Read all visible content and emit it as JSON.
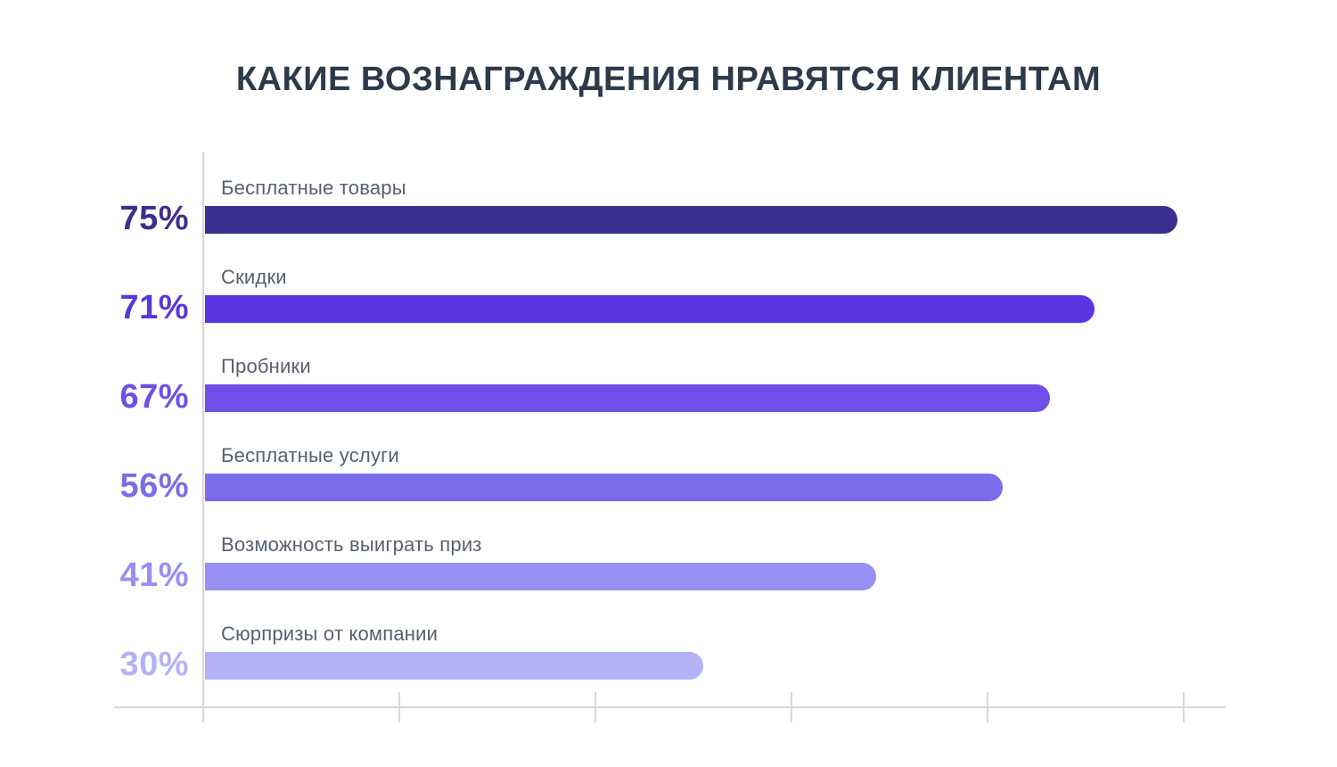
{
  "title": "КАКИЕ ВОЗНАГРАЖДЕНИЯ НРАВЯТСЯ КЛИЕНТАМ",
  "chart_data": {
    "type": "bar",
    "orientation": "horizontal",
    "title": "КАКИЕ ВОЗНАГРАЖДЕНИЯ НРАВЯТСЯ КЛИЕНТАМ",
    "categories": [
      "Бесплатные товары",
      "Скидки",
      "Пробники",
      "Бесплатные услуги",
      "Возможность выиграть приз",
      "Сюрпризы от компании"
    ],
    "values": [
      75,
      71,
      67,
      56,
      41,
      30
    ],
    "value_labels": [
      "75%",
      "71%",
      "67%",
      "56%",
      "41%",
      "30%"
    ],
    "bar_colors": [
      "#3a2f90",
      "#5a35e0",
      "#6f4fe8",
      "#7b6cea",
      "#9590f2",
      "#b4b2f6"
    ],
    "bar_width_fractions": [
      0.953,
      0.872,
      0.828,
      0.782,
      0.658,
      0.488
    ],
    "xlabel": "",
    "ylabel": "",
    "xlim": [
      0,
      78
    ],
    "xticks_pct": [
      0,
      15,
      30,
      45,
      60,
      75
    ],
    "grid": false,
    "legend": "none",
    "colors": {
      "title_text": "#2d3a4b",
      "category_label_text": "#57606e",
      "axis_line": "#d7d7dc",
      "background": "#ffffff"
    }
  }
}
